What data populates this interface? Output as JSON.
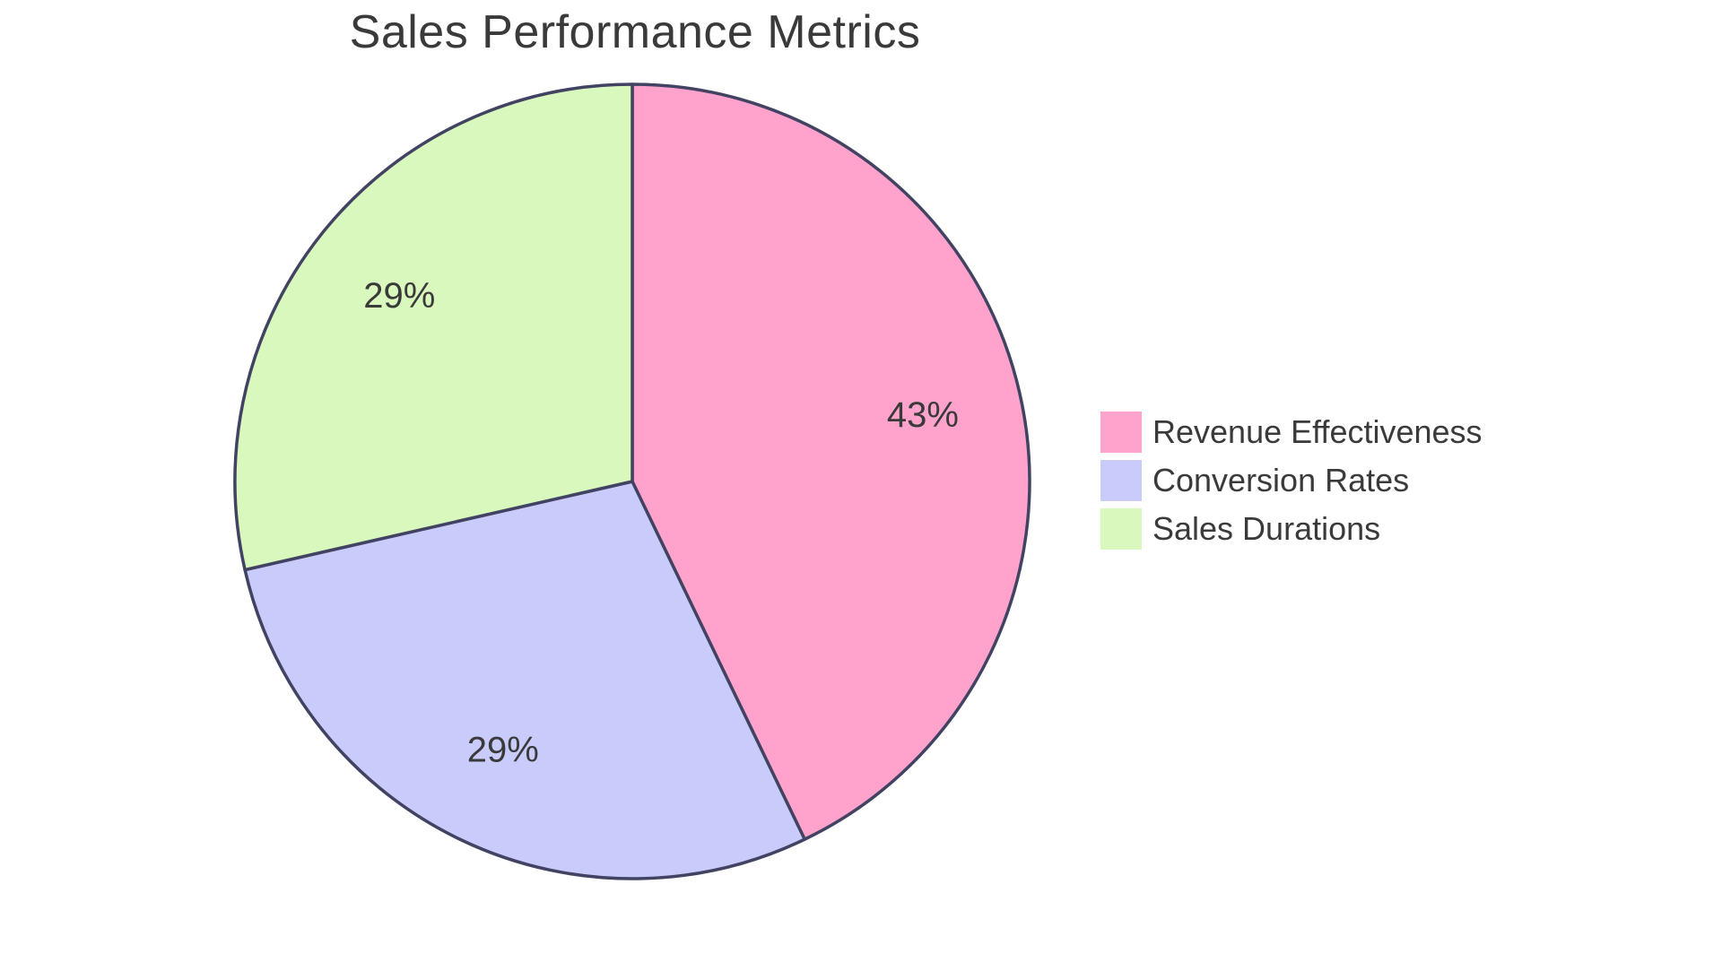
{
  "title": "Sales Performance Metrics",
  "colors": {
    "background": "#ffffff",
    "slice_stroke": "#424363",
    "label_text": "#3a3a3a"
  },
  "chart_data": {
    "type": "pie",
    "title": "Sales Performance Metrics",
    "legend_position": "right",
    "start_angle_deg": 0,
    "direction": "clockwise",
    "slices": [
      {
        "label": "Revenue Effectiveness",
        "pct_label": "43%",
        "value": 43,
        "fraction": 0.42857,
        "color": "#FFA3CC"
      },
      {
        "label": "Conversion Rates",
        "pct_label": "29%",
        "value": 29,
        "fraction": 0.28571,
        "color": "#C9CBFB"
      },
      {
        "label": "Sales Durations",
        "pct_label": "29%",
        "value": 29,
        "fraction": 0.28571,
        "color": "#D9F8BD"
      }
    ]
  }
}
